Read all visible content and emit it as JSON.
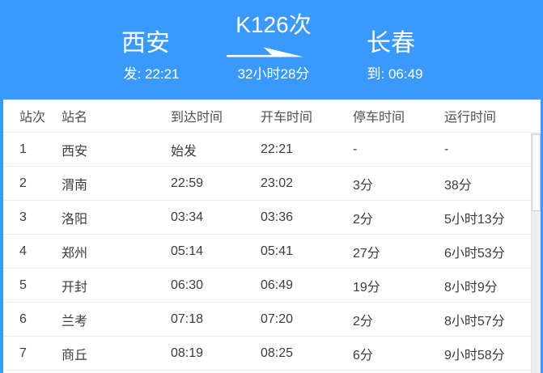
{
  "banner": {
    "from_station": "西安",
    "from_time": "发: 22:21",
    "train_number": "K126次",
    "duration": "32小时28分",
    "to_station": "长春",
    "to_time": "到: 06:49",
    "arrow_icon": "right-arrow",
    "bg_color": "#3a99fc"
  },
  "timetable": {
    "columns": [
      "站次",
      "站名",
      "到达时间",
      "开车时间",
      "停车时间",
      "运行时间"
    ],
    "rows": [
      [
        "1",
        "西安",
        "始发",
        "22:21",
        "-",
        "-"
      ],
      [
        "2",
        "渭南",
        "22:59",
        "23:02",
        "3分",
        "38分"
      ],
      [
        "3",
        "洛阳",
        "03:34",
        "03:36",
        "2分",
        "5小时13分"
      ],
      [
        "4",
        "郑州",
        "05:14",
        "05:41",
        "27分",
        "6小时53分"
      ],
      [
        "5",
        "开封",
        "06:30",
        "06:49",
        "19分",
        "8小时9分"
      ],
      [
        "6",
        "兰考",
        "07:18",
        "07:20",
        "2分",
        "8小时57分"
      ],
      [
        "7",
        "商丘",
        "08:19",
        "08:25",
        "6分",
        "9小时58分"
      ]
    ]
  }
}
